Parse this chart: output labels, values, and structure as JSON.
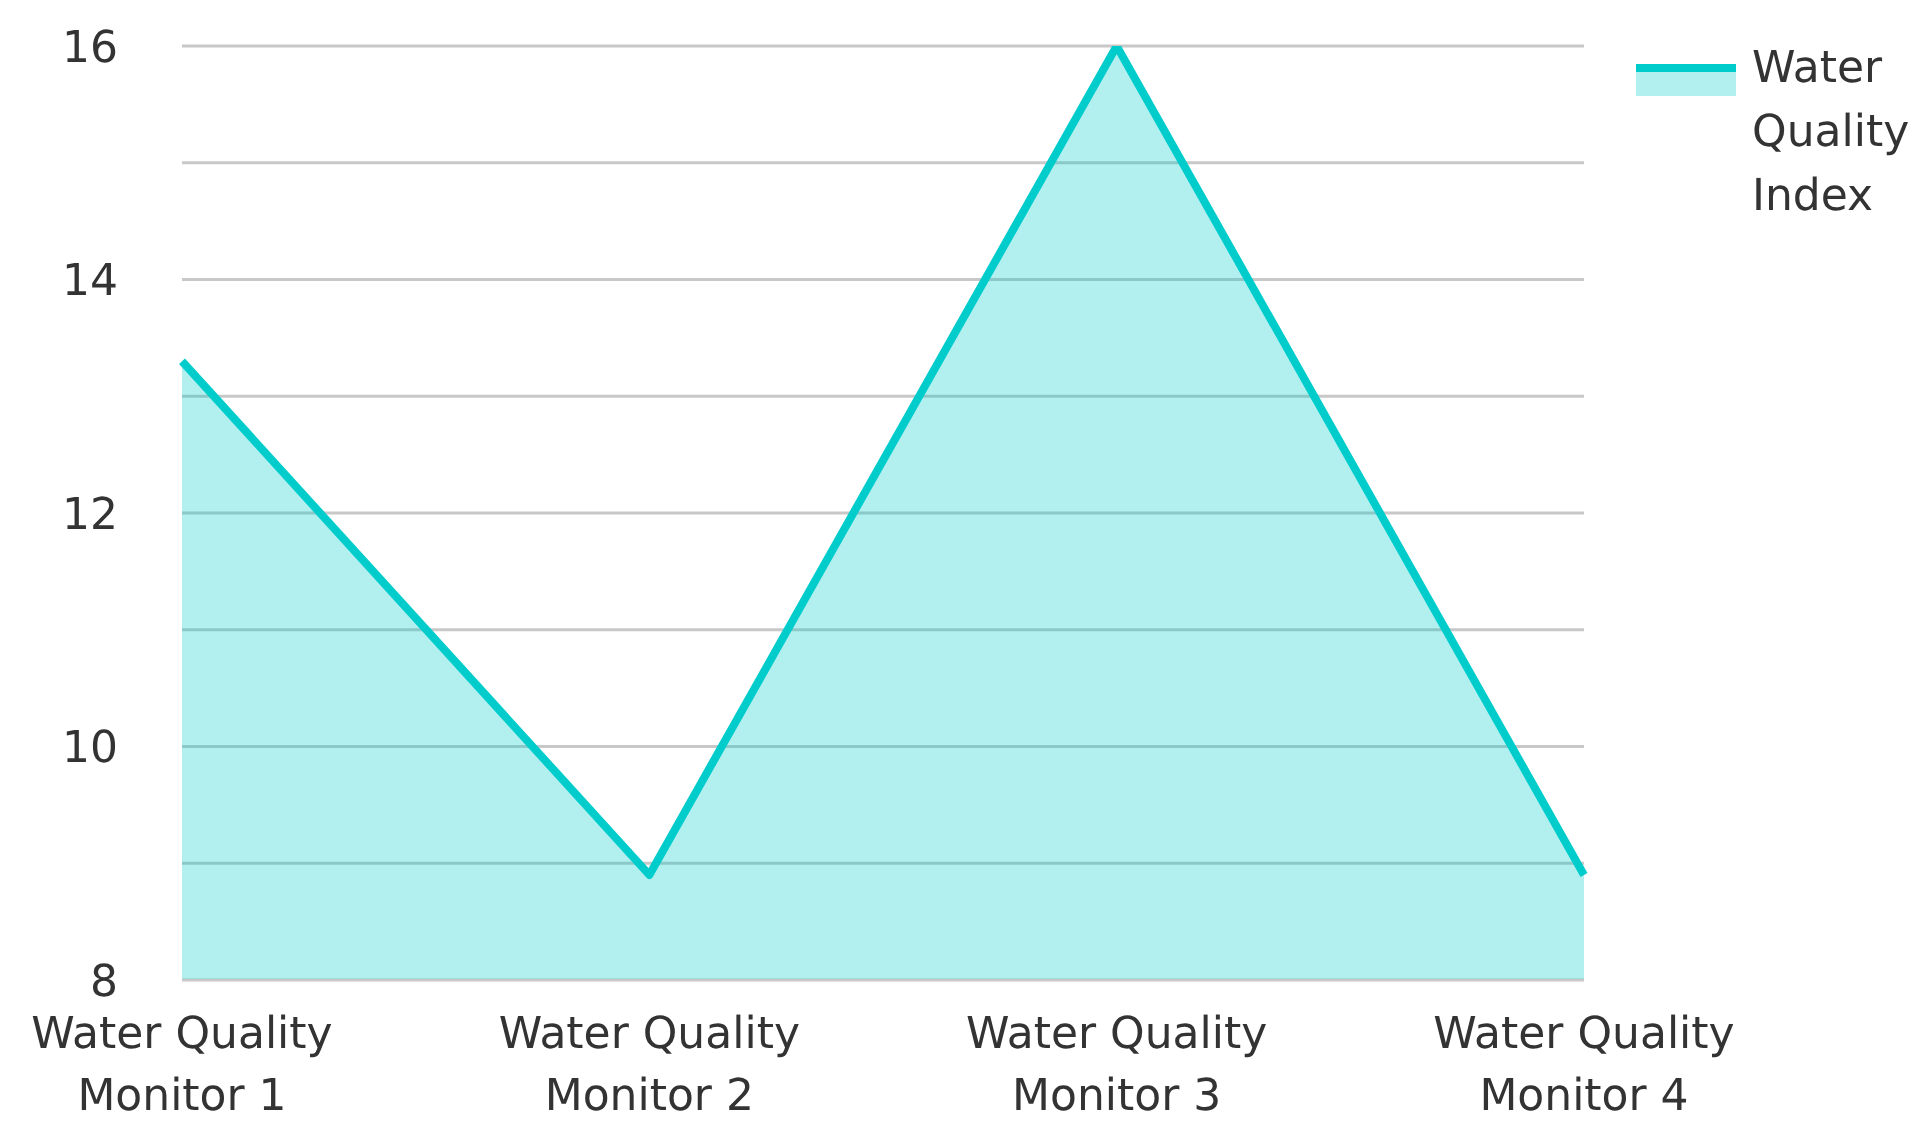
{
  "chart_data": {
    "type": "area",
    "categories": [
      "Water Quality Monitor 1",
      "Water Quality Monitor 2",
      "Water Quality Monitor 3",
      "Water Quality Monitor 4"
    ],
    "series": [
      {
        "name": "Water Quality Index",
        "color": "#00cccc",
        "values": [
          13.3,
          8.9,
          16,
          8.9
        ]
      }
    ],
    "ylim": [
      8,
      16
    ],
    "yticks": [
      8,
      {
        "value": 9,
        "label": null
      },
      10,
      {
        "value": 11,
        "label": null
      },
      12,
      {
        "value": 13,
        "label": null
      },
      14,
      {
        "value": 15,
        "label": null
      },
      16
    ],
    "grid": "y",
    "legend": "top right"
  }
}
